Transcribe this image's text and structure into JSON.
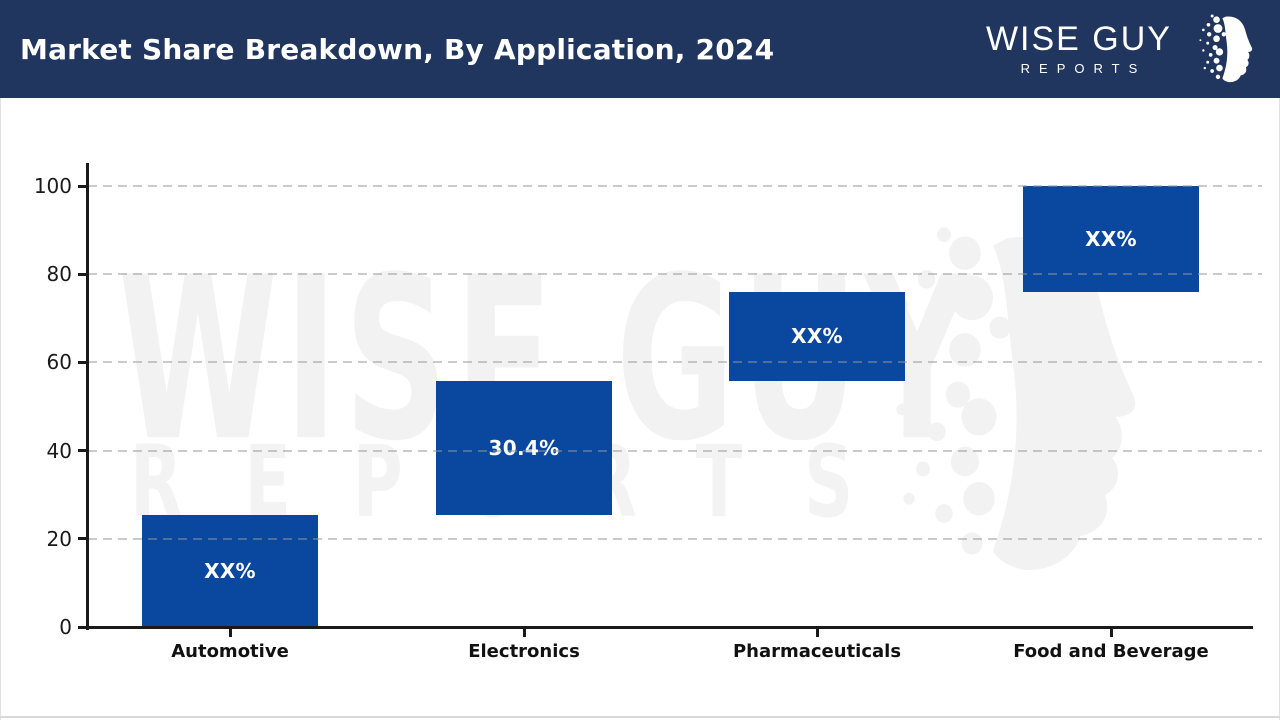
{
  "header": {
    "title": "Market Share Breakdown, By Application, 2024",
    "logo": {
      "line1": "WISE GUY",
      "line2": "REPORTS"
    }
  },
  "watermark": {
    "line1": "WISE GUY",
    "line2": "REPORTS"
  },
  "colors": {
    "header_bg": "#21365F",
    "bar": "#0A48A0",
    "axis": "#1A1A1A",
    "gridline": "#D9D9D9",
    "bar_label": "#FFFFFF",
    "watermark": "#F2F2F2"
  },
  "chart_data": {
    "type": "waterfall-bar",
    "title": "Market Share Breakdown, By Application, 2024",
    "categories": [
      "Automotive",
      "Electronics",
      "Pharmaceuticals",
      "Food and Beverage"
    ],
    "segments": [
      {
        "category": "Automotive",
        "start": 0,
        "end": 25.4,
        "label": "XX%"
      },
      {
        "category": "Electronics",
        "start": 25.4,
        "end": 55.8,
        "label": "30.4%"
      },
      {
        "category": "Pharmaceuticals",
        "start": 55.8,
        "end": 76.0,
        "label": "XX%"
      },
      {
        "category": "Food and Beverage",
        "start": 76.0,
        "end": 100.0,
        "label": "XX%"
      }
    ],
    "xlabel": "",
    "ylabel": "",
    "ylim": [
      0,
      100
    ],
    "yticks": [
      0,
      20,
      40,
      60,
      80,
      100
    ],
    "grid": "horizontal-dashed",
    "legend": "none",
    "bar_color": "#0A48A0"
  }
}
